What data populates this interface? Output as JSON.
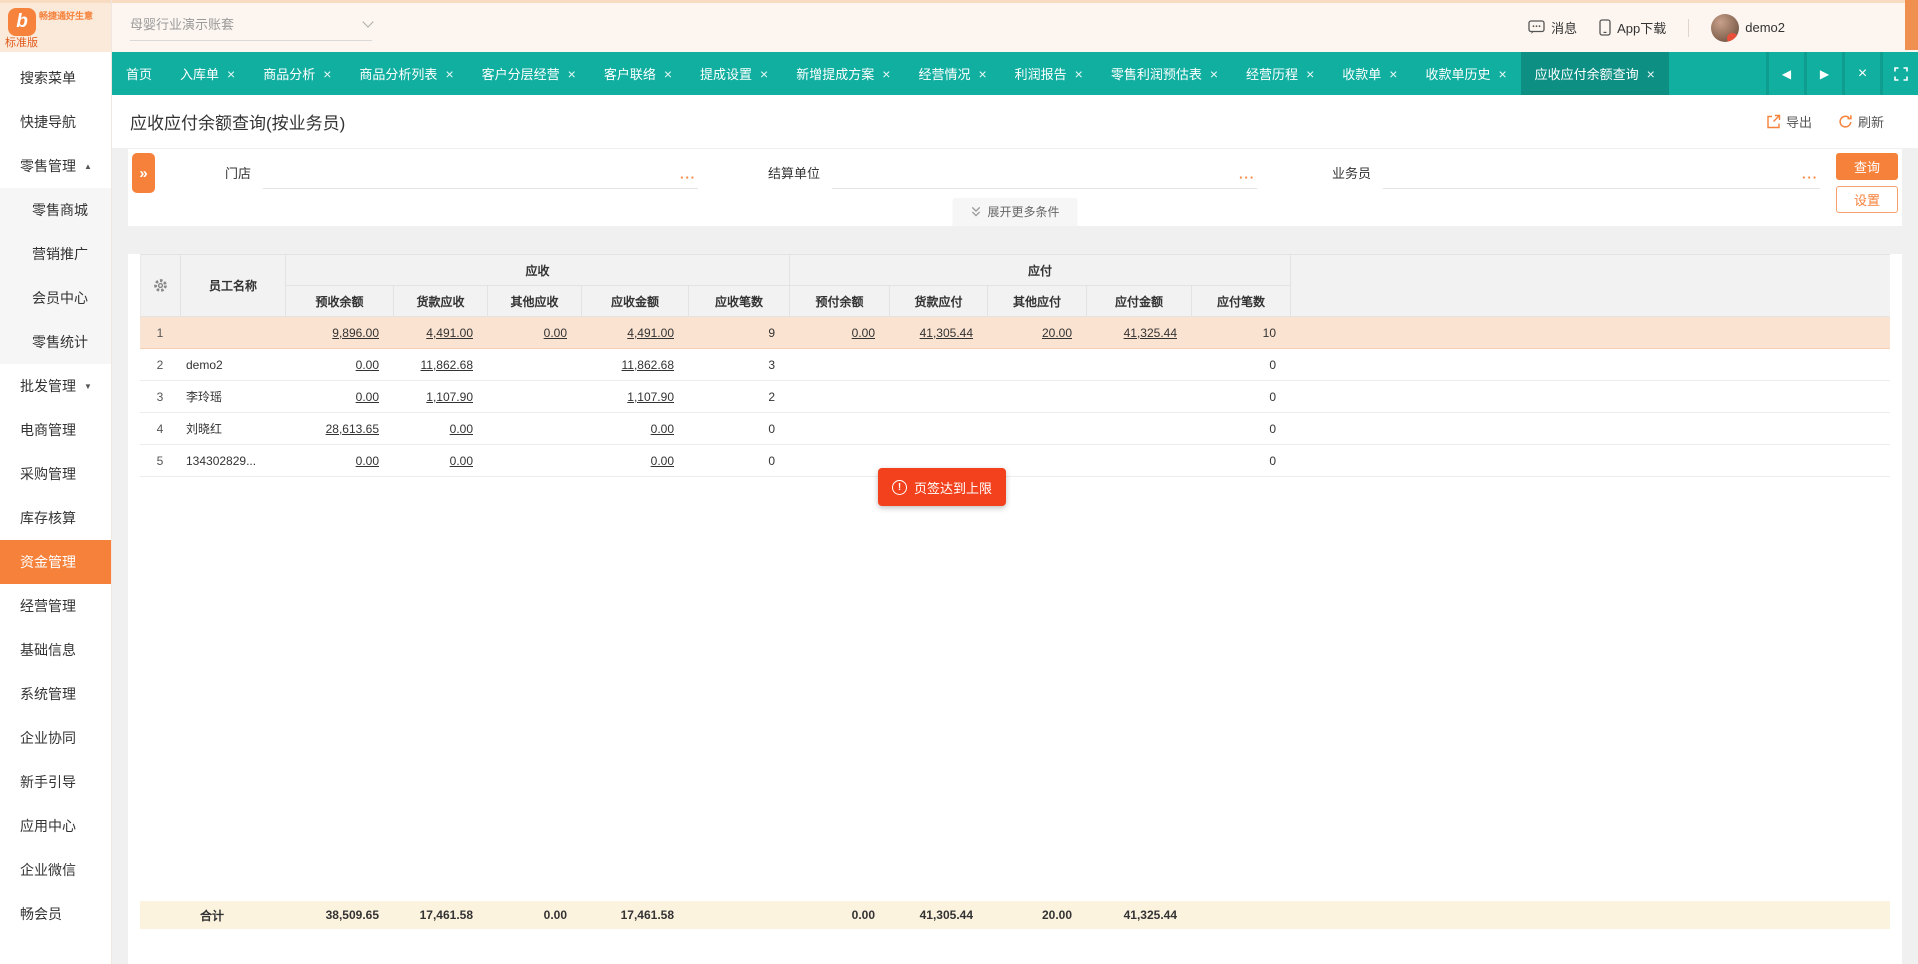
{
  "brand": {
    "name": "畅捷通好生意",
    "edition": "标准版",
    "logo_glyph": "b"
  },
  "topbar": {
    "account_selector": "母婴行业演示账套",
    "message_label": "消息",
    "app_download_label": "App下载",
    "username": "demo2"
  },
  "tabbar": {
    "tabs": [
      {
        "label": "首页",
        "closable": false,
        "active": false
      },
      {
        "label": "入库单",
        "closable": true,
        "active": false
      },
      {
        "label": "商品分析",
        "closable": true,
        "active": false
      },
      {
        "label": "商品分析列表",
        "closable": true,
        "active": false
      },
      {
        "label": "客户分层经营",
        "closable": true,
        "active": false
      },
      {
        "label": "客户联络",
        "closable": true,
        "active": false
      },
      {
        "label": "提成设置",
        "closable": true,
        "active": false
      },
      {
        "label": "新增提成方案",
        "closable": true,
        "active": false
      },
      {
        "label": "经营情况",
        "closable": true,
        "active": false
      },
      {
        "label": "利润报告",
        "closable": true,
        "active": false
      },
      {
        "label": "零售利润预估表",
        "closable": true,
        "active": false
      },
      {
        "label": "经营历程",
        "closable": true,
        "active": false
      },
      {
        "label": "收款单",
        "closable": true,
        "active": false
      },
      {
        "label": "收款单历史",
        "closable": true,
        "active": false
      },
      {
        "label": "应收应付余额查询",
        "closable": true,
        "active": true
      }
    ]
  },
  "sidebar": {
    "items": [
      {
        "label": "搜索菜单"
      },
      {
        "label": "快捷导航"
      },
      {
        "label": "零售管理",
        "arrow": "up"
      },
      {
        "label": "零售商城",
        "child": true
      },
      {
        "label": "营销推广",
        "child": true
      },
      {
        "label": "会员中心",
        "child": true
      },
      {
        "label": "零售统计",
        "child": true
      },
      {
        "label": "批发管理",
        "arrow": "down"
      },
      {
        "label": "电商管理"
      },
      {
        "label": "采购管理"
      },
      {
        "label": "库存核算"
      },
      {
        "label": "资金管理",
        "active": true
      },
      {
        "label": "经营管理"
      },
      {
        "label": "基础信息"
      },
      {
        "label": "系统管理"
      },
      {
        "label": "企业协同"
      },
      {
        "label": "新手引导"
      },
      {
        "label": "应用中心"
      },
      {
        "label": "企业微信"
      },
      {
        "label": "畅会员"
      }
    ]
  },
  "page": {
    "title": "应收应付余额查询(按业务员)",
    "export_label": "导出",
    "refresh_label": "刷新"
  },
  "filters": {
    "fields": [
      {
        "label": "门店"
      },
      {
        "label": "结算单位"
      },
      {
        "label": "业务员"
      }
    ],
    "query_label": "查询",
    "settings_label": "设置",
    "expand_more_label": "展开更多条件"
  },
  "toast": {
    "text": "页签达到上限"
  },
  "table": {
    "header": {
      "name_col": "员工名称",
      "groups": [
        {
          "label": "应收",
          "cols": [
            "预收余额",
            "货款应收",
            "其他应收",
            "应收金额",
            "应收笔数"
          ]
        },
        {
          "label": "应付",
          "cols": [
            "预付余额",
            "货款应付",
            "其他应付",
            "应付金额",
            "应付笔数"
          ]
        }
      ]
    },
    "rows": [
      {
        "num": "1",
        "name": "",
        "selected": true,
        "cells": [
          {
            "v": "9,896.00",
            "link": true
          },
          {
            "v": "4,491.00",
            "link": true
          },
          {
            "v": "0.00",
            "link": true
          },
          {
            "v": "4,491.00",
            "link": true
          },
          {
            "v": "9"
          },
          {
            "v": "0.00",
            "link": true
          },
          {
            "v": "41,305.44",
            "link": true
          },
          {
            "v": "20.00",
            "link": true
          },
          {
            "v": "41,325.44",
            "link": true
          },
          {
            "v": "10"
          }
        ]
      },
      {
        "num": "2",
        "name": "demo2",
        "cells": [
          {
            "v": "0.00",
            "link": true
          },
          {
            "v": "11,862.68",
            "link": true
          },
          {
            "v": ""
          },
          {
            "v": "11,862.68",
            "link": true
          },
          {
            "v": "3"
          },
          {
            "v": ""
          },
          {
            "v": ""
          },
          {
            "v": ""
          },
          {
            "v": ""
          },
          {
            "v": "0"
          }
        ]
      },
      {
        "num": "3",
        "name": "李玲瑶",
        "cells": [
          {
            "v": "0.00",
            "link": true
          },
          {
            "v": "1,107.90",
            "link": true
          },
          {
            "v": ""
          },
          {
            "v": "1,107.90",
            "link": true
          },
          {
            "v": "2"
          },
          {
            "v": ""
          },
          {
            "v": ""
          },
          {
            "v": ""
          },
          {
            "v": ""
          },
          {
            "v": "0"
          }
        ]
      },
      {
        "num": "4",
        "name": "刘晓红",
        "cells": [
          {
            "v": "28,613.65",
            "link": true
          },
          {
            "v": "0.00",
            "link": true
          },
          {
            "v": ""
          },
          {
            "v": "0.00",
            "link": true
          },
          {
            "v": "0"
          },
          {
            "v": ""
          },
          {
            "v": ""
          },
          {
            "v": ""
          },
          {
            "v": ""
          },
          {
            "v": "0"
          }
        ]
      },
      {
        "num": "5",
        "name": "134302829...",
        "cells": [
          {
            "v": "0.00",
            "link": true
          },
          {
            "v": "0.00",
            "link": true
          },
          {
            "v": ""
          },
          {
            "v": "0.00",
            "link": true
          },
          {
            "v": "0"
          },
          {
            "v": ""
          },
          {
            "v": ""
          },
          {
            "v": ""
          },
          {
            "v": ""
          },
          {
            "v": "0"
          }
        ]
      }
    ],
    "total": {
      "label": "合计",
      "cells": [
        "38,509.65",
        "17,461.58",
        "0.00",
        "17,461.58",
        "",
        "0.00",
        "41,305.44",
        "20.00",
        "41,325.44",
        ""
      ]
    }
  },
  "icons": {
    "close": "×",
    "prev": "◀",
    "next": "▶",
    "expand": "»",
    "ellipsis": "···",
    "arrow_up": "▲",
    "arrow_down": "▼",
    "toast_mark": "!"
  },
  "colors": {
    "teal": "#11afa0",
    "teal_active": "#0d8f83",
    "orange": "#f6813a",
    "toast_red": "#f2411c",
    "selected_row": "#fbe3d1",
    "total_row": "#fcf3df"
  }
}
